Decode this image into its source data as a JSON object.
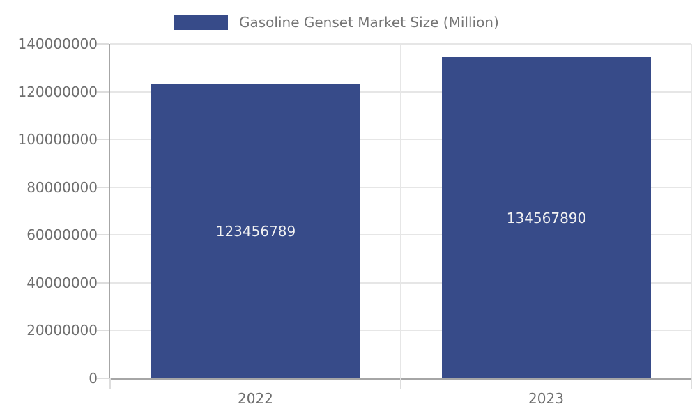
{
  "legend": {
    "label": "Gasoline Genset Market Size (Million)"
  },
  "chart_data": {
    "type": "bar",
    "title": "Gasoline Genset Market Size (Million)",
    "categories": [
      "2022",
      "2023"
    ],
    "values": [
      123456789,
      134567890
    ],
    "bar_labels": [
      "123456789",
      "134567890"
    ],
    "xlabel": "",
    "ylabel": "",
    "ylim": [
      0,
      140000000
    ],
    "yticks": [
      0,
      20000000,
      40000000,
      60000000,
      80000000,
      100000000,
      120000000,
      140000000
    ],
    "grid": true,
    "legend_position": "top",
    "bar_label_position": "inside-center",
    "colors": {
      "bar": "#374b89",
      "grid": "#e6e6e6",
      "axis": "#a6a6a6",
      "tick": "#dddddd",
      "tick_label": "#6e6e6e",
      "legend_text": "#757575",
      "bar_label": "#f2f2f2",
      "background": "#ffffff"
    }
  }
}
